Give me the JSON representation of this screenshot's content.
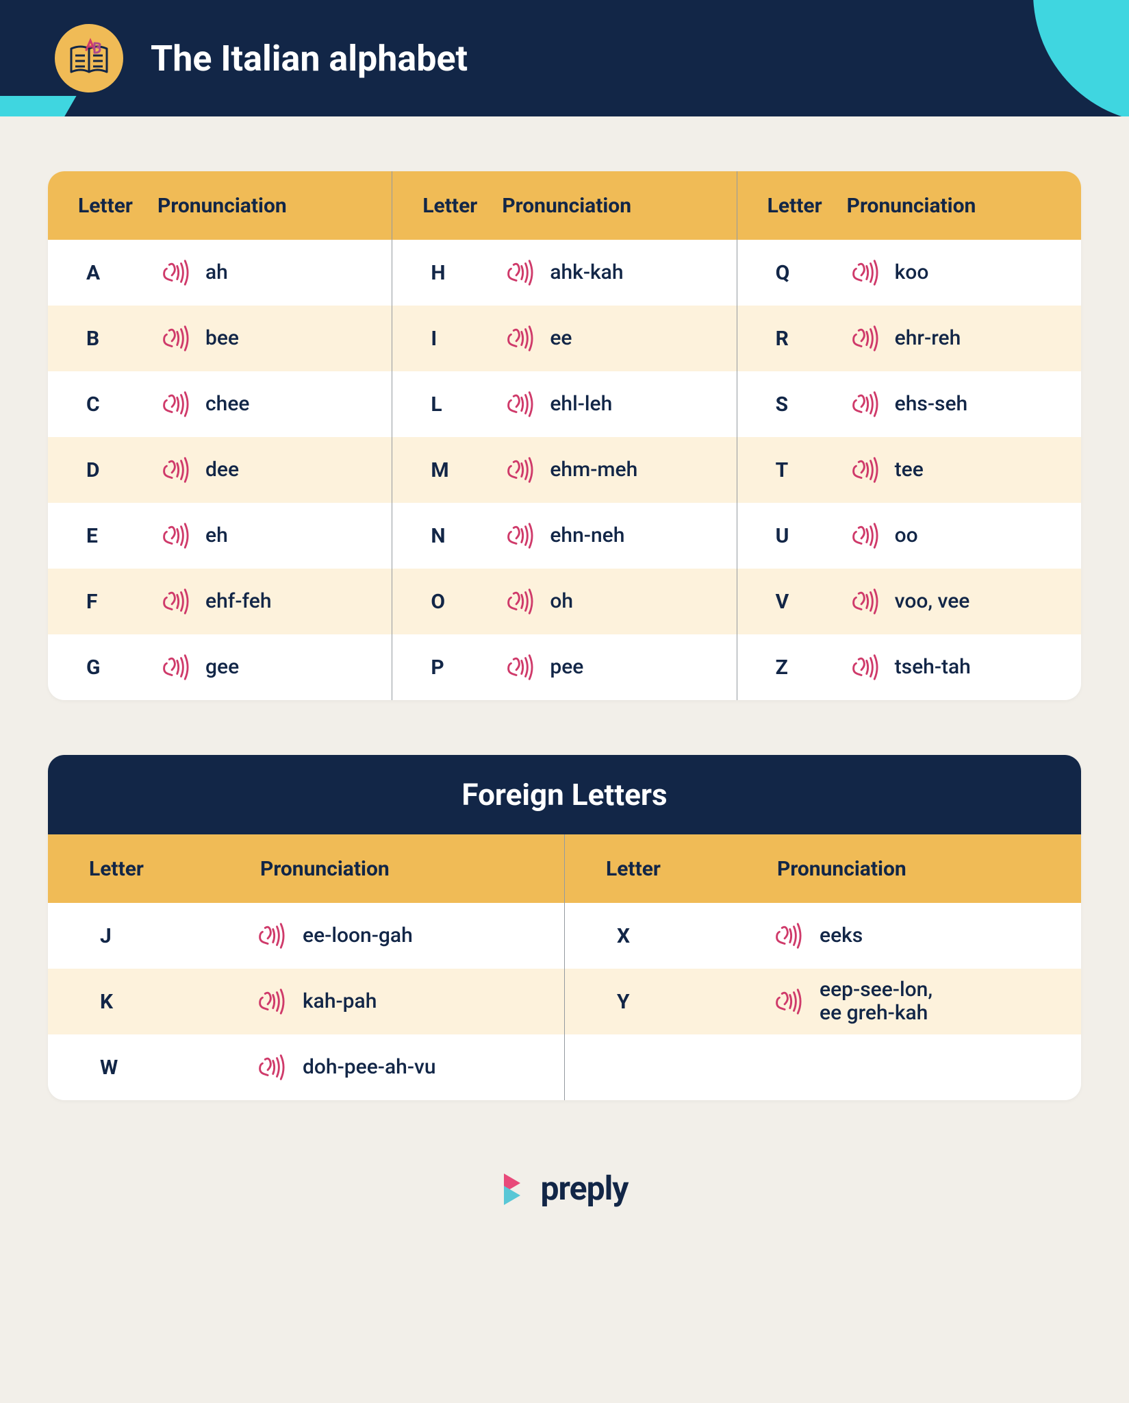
{
  "colors": {
    "header_bg": "#122647",
    "accent_cyan": "#3fd6e0",
    "icon_circle_bg": "#f0bb56",
    "table_header_bg": "#f0bb56",
    "row_stripe_bg": "#fdf2dc",
    "text_dark": "#122647",
    "divider": "#939a9f",
    "page_bg": "#f2efe9",
    "pron_icon": "#cf3a6a",
    "brand_pink": "#e84a7a",
    "brand_cyan": "#59c7d6"
  },
  "header": {
    "title": "The Italian alphabet"
  },
  "main_table": {
    "col_headers": {
      "letter": "Letter",
      "pronunciation": "Pronunciation"
    },
    "columns": [
      [
        {
          "letter": "A",
          "pron": "ah"
        },
        {
          "letter": "B",
          "pron": "bee"
        },
        {
          "letter": "C",
          "pron": "chee"
        },
        {
          "letter": "D",
          "pron": "dee"
        },
        {
          "letter": "E",
          "pron": "eh"
        },
        {
          "letter": "F",
          "pron": "ehf-feh"
        },
        {
          "letter": "G",
          "pron": "gee"
        }
      ],
      [
        {
          "letter": "H",
          "pron": "ahk-kah"
        },
        {
          "letter": "I",
          "pron": "ee"
        },
        {
          "letter": "L",
          "pron": "ehl-leh"
        },
        {
          "letter": "M",
          "pron": "ehm-meh"
        },
        {
          "letter": "N",
          "pron": "ehn-neh"
        },
        {
          "letter": "O",
          "pron": "oh"
        },
        {
          "letter": "P",
          "pron": "pee"
        }
      ],
      [
        {
          "letter": "Q",
          "pron": "koo"
        },
        {
          "letter": "R",
          "pron": "ehr-reh"
        },
        {
          "letter": "S",
          "pron": "ehs-seh"
        },
        {
          "letter": "T",
          "pron": "tee"
        },
        {
          "letter": "U",
          "pron": "oo"
        },
        {
          "letter": "V",
          "pron": "voo, vee"
        },
        {
          "letter": "Z",
          "pron": "tseh-tah"
        }
      ]
    ]
  },
  "foreign_table": {
    "title": "Foreign Letters",
    "col_headers": {
      "letter": "Letter",
      "pronunciation": "Pronunciation"
    },
    "columns": [
      [
        {
          "letter": "J",
          "pron": "ee-loon-gah"
        },
        {
          "letter": "K",
          "pron": "kah-pah"
        },
        {
          "letter": "W",
          "pron": "doh-pee-ah-vu"
        }
      ],
      [
        {
          "letter": "X",
          "pron": "eeks"
        },
        {
          "letter": "Y",
          "pron": "eep-see-lon,\nee greh-kah"
        }
      ]
    ]
  },
  "footer": {
    "brand": "preply"
  }
}
